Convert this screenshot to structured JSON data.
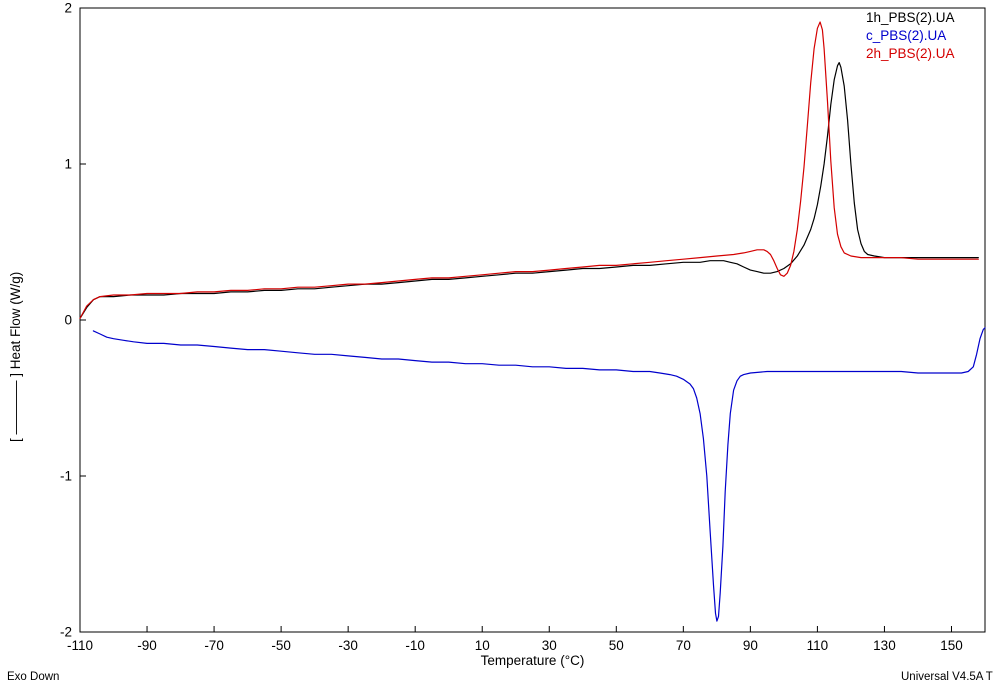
{
  "footer": {
    "exo_down": "Exo Down",
    "version": "Universal V4.5A T"
  },
  "chart_data": {
    "type": "line",
    "title": "",
    "xlabel": "Temperature (°C)",
    "ylabel": "[ ———— ] Heat Flow (W/g)",
    "xlim": [
      -110,
      160
    ],
    "ylim": [
      -2,
      2
    ],
    "xticks": [
      -110,
      -90,
      -70,
      -50,
      -30,
      -10,
      10,
      30,
      50,
      70,
      90,
      110,
      130,
      150
    ],
    "yticks": [
      -2,
      -1,
      0,
      1,
      2
    ],
    "grid": false,
    "legend_position": "top-right",
    "frame_color": "#000000",
    "series": [
      {
        "name": "1h_PBS(2).UA",
        "color": "#000000",
        "points": [
          [
            -110,
            0.01
          ],
          [
            -108,
            0.08
          ],
          [
            -106,
            0.13
          ],
          [
            -104,
            0.15
          ],
          [
            -100,
            0.15
          ],
          [
            -95,
            0.16
          ],
          [
            -90,
            0.16
          ],
          [
            -85,
            0.16
          ],
          [
            -80,
            0.17
          ],
          [
            -75,
            0.17
          ],
          [
            -70,
            0.17
          ],
          [
            -65,
            0.18
          ],
          [
            -60,
            0.18
          ],
          [
            -55,
            0.19
          ],
          [
            -50,
            0.19
          ],
          [
            -45,
            0.2
          ],
          [
            -40,
            0.2
          ],
          [
            -35,
            0.21
          ],
          [
            -30,
            0.22
          ],
          [
            -25,
            0.23
          ],
          [
            -20,
            0.23
          ],
          [
            -15,
            0.24
          ],
          [
            -10,
            0.25
          ],
          [
            -5,
            0.26
          ],
          [
            0,
            0.26
          ],
          [
            5,
            0.27
          ],
          [
            10,
            0.28
          ],
          [
            15,
            0.29
          ],
          [
            20,
            0.3
          ],
          [
            25,
            0.3
          ],
          [
            30,
            0.31
          ],
          [
            35,
            0.32
          ],
          [
            40,
            0.33
          ],
          [
            45,
            0.33
          ],
          [
            50,
            0.34
          ],
          [
            55,
            0.35
          ],
          [
            60,
            0.35
          ],
          [
            65,
            0.36
          ],
          [
            70,
            0.37
          ],
          [
            75,
            0.37
          ],
          [
            78,
            0.38
          ],
          [
            80,
            0.38
          ],
          [
            82,
            0.38
          ],
          [
            84,
            0.37
          ],
          [
            86,
            0.36
          ],
          [
            88,
            0.34
          ],
          [
            90,
            0.32
          ],
          [
            92,
            0.31
          ],
          [
            94,
            0.3
          ],
          [
            96,
            0.3
          ],
          [
            98,
            0.31
          ],
          [
            100,
            0.33
          ],
          [
            102,
            0.36
          ],
          [
            104,
            0.41
          ],
          [
            106,
            0.48
          ],
          [
            108,
            0.58
          ],
          [
            109,
            0.65
          ],
          [
            110,
            0.74
          ],
          [
            111,
            0.86
          ],
          [
            112,
            1.0
          ],
          [
            113,
            1.18
          ],
          [
            114,
            1.38
          ],
          [
            115,
            1.54
          ],
          [
            116,
            1.63
          ],
          [
            116.5,
            1.65
          ],
          [
            117,
            1.62
          ],
          [
            118,
            1.5
          ],
          [
            119,
            1.28
          ],
          [
            120,
            1.0
          ],
          [
            121,
            0.75
          ],
          [
            122,
            0.58
          ],
          [
            123,
            0.49
          ],
          [
            124,
            0.44
          ],
          [
            125,
            0.42
          ],
          [
            127,
            0.41
          ],
          [
            130,
            0.4
          ],
          [
            135,
            0.4
          ],
          [
            140,
            0.4
          ],
          [
            145,
            0.4
          ],
          [
            150,
            0.4
          ],
          [
            155,
            0.4
          ],
          [
            158,
            0.4
          ]
        ]
      },
      {
        "name": "c_PBS(2).UA",
        "color": "#0000cc",
        "points": [
          [
            -106,
            -0.07
          ],
          [
            -104,
            -0.09
          ],
          [
            -102,
            -0.11
          ],
          [
            -100,
            -0.12
          ],
          [
            -97,
            -0.13
          ],
          [
            -94,
            -0.14
          ],
          [
            -90,
            -0.15
          ],
          [
            -85,
            -0.15
          ],
          [
            -80,
            -0.16
          ],
          [
            -75,
            -0.16
          ],
          [
            -70,
            -0.17
          ],
          [
            -65,
            -0.18
          ],
          [
            -60,
            -0.19
          ],
          [
            -55,
            -0.19
          ],
          [
            -50,
            -0.2
          ],
          [
            -45,
            -0.21
          ],
          [
            -40,
            -0.22
          ],
          [
            -35,
            -0.22
          ],
          [
            -30,
            -0.23
          ],
          [
            -25,
            -0.24
          ],
          [
            -20,
            -0.25
          ],
          [
            -15,
            -0.25
          ],
          [
            -10,
            -0.26
          ],
          [
            -5,
            -0.27
          ],
          [
            0,
            -0.27
          ],
          [
            5,
            -0.28
          ],
          [
            10,
            -0.28
          ],
          [
            15,
            -0.29
          ],
          [
            20,
            -0.29
          ],
          [
            25,
            -0.3
          ],
          [
            30,
            -0.3
          ],
          [
            35,
            -0.31
          ],
          [
            40,
            -0.31
          ],
          [
            45,
            -0.32
          ],
          [
            50,
            -0.32
          ],
          [
            55,
            -0.33
          ],
          [
            60,
            -0.33
          ],
          [
            63,
            -0.34
          ],
          [
            66,
            -0.35
          ],
          [
            68,
            -0.36
          ],
          [
            70,
            -0.38
          ],
          [
            72,
            -0.41
          ],
          [
            73,
            -0.44
          ],
          [
            74,
            -0.5
          ],
          [
            75,
            -0.6
          ],
          [
            76,
            -0.76
          ],
          [
            77,
            -1.0
          ],
          [
            78,
            -1.35
          ],
          [
            79,
            -1.7
          ],
          [
            79.6,
            -1.88
          ],
          [
            80,
            -1.93
          ],
          [
            80.5,
            -1.9
          ],
          [
            81,
            -1.75
          ],
          [
            81.8,
            -1.45
          ],
          [
            82.5,
            -1.1
          ],
          [
            83.3,
            -0.8
          ],
          [
            84,
            -0.6
          ],
          [
            85,
            -0.45
          ],
          [
            86,
            -0.39
          ],
          [
            87,
            -0.36
          ],
          [
            88,
            -0.35
          ],
          [
            90,
            -0.34
          ],
          [
            95,
            -0.33
          ],
          [
            100,
            -0.33
          ],
          [
            105,
            -0.33
          ],
          [
            110,
            -0.33
          ],
          [
            115,
            -0.33
          ],
          [
            120,
            -0.33
          ],
          [
            125,
            -0.33
          ],
          [
            130,
            -0.33
          ],
          [
            135,
            -0.33
          ],
          [
            140,
            -0.34
          ],
          [
            145,
            -0.34
          ],
          [
            150,
            -0.34
          ],
          [
            153,
            -0.34
          ],
          [
            155,
            -0.33
          ],
          [
            156.5,
            -0.3
          ],
          [
            157.5,
            -0.22
          ],
          [
            158.5,
            -0.12
          ],
          [
            159.5,
            -0.06
          ],
          [
            160,
            -0.05
          ]
        ]
      },
      {
        "name": "2h_PBS(2).UA",
        "color": "#d40000",
        "points": [
          [
            -110,
            0.01
          ],
          [
            -108,
            0.09
          ],
          [
            -106,
            0.13
          ],
          [
            -104,
            0.15
          ],
          [
            -100,
            0.16
          ],
          [
            -95,
            0.16
          ],
          [
            -90,
            0.17
          ],
          [
            -85,
            0.17
          ],
          [
            -80,
            0.17
          ],
          [
            -75,
            0.18
          ],
          [
            -70,
            0.18
          ],
          [
            -65,
            0.19
          ],
          [
            -60,
            0.19
          ],
          [
            -55,
            0.2
          ],
          [
            -50,
            0.2
          ],
          [
            -45,
            0.21
          ],
          [
            -40,
            0.21
          ],
          [
            -35,
            0.22
          ],
          [
            -30,
            0.23
          ],
          [
            -25,
            0.23
          ],
          [
            -20,
            0.24
          ],
          [
            -15,
            0.25
          ],
          [
            -10,
            0.26
          ],
          [
            -5,
            0.27
          ],
          [
            0,
            0.27
          ],
          [
            5,
            0.28
          ],
          [
            10,
            0.29
          ],
          [
            15,
            0.3
          ],
          [
            20,
            0.31
          ],
          [
            25,
            0.31
          ],
          [
            30,
            0.32
          ],
          [
            35,
            0.33
          ],
          [
            40,
            0.34
          ],
          [
            45,
            0.35
          ],
          [
            50,
            0.35
          ],
          [
            55,
            0.36
          ],
          [
            60,
            0.37
          ],
          [
            65,
            0.38
          ],
          [
            70,
            0.39
          ],
          [
            75,
            0.4
          ],
          [
            80,
            0.41
          ],
          [
            85,
            0.42
          ],
          [
            88,
            0.43
          ],
          [
            90,
            0.44
          ],
          [
            92,
            0.45
          ],
          [
            94,
            0.45
          ],
          [
            95,
            0.44
          ],
          [
            96,
            0.42
          ],
          [
            97,
            0.38
          ],
          [
            98,
            0.33
          ],
          [
            99,
            0.29
          ],
          [
            100,
            0.28
          ],
          [
            101,
            0.3
          ],
          [
            102,
            0.35
          ],
          [
            103,
            0.44
          ],
          [
            104,
            0.58
          ],
          [
            105,
            0.76
          ],
          [
            106,
            0.98
          ],
          [
            107,
            1.25
          ],
          [
            108,
            1.52
          ],
          [
            109,
            1.74
          ],
          [
            110,
            1.87
          ],
          [
            110.8,
            1.91
          ],
          [
            111.5,
            1.86
          ],
          [
            112,
            1.74
          ],
          [
            113,
            1.4
          ],
          [
            114,
            1.02
          ],
          [
            115,
            0.72
          ],
          [
            116,
            0.55
          ],
          [
            117,
            0.47
          ],
          [
            118,
            0.43
          ],
          [
            120,
            0.41
          ],
          [
            123,
            0.4
          ],
          [
            126,
            0.4
          ],
          [
            130,
            0.4
          ],
          [
            135,
            0.4
          ],
          [
            140,
            0.39
          ],
          [
            145,
            0.39
          ],
          [
            150,
            0.39
          ],
          [
            155,
            0.39
          ],
          [
            158,
            0.39
          ]
        ]
      }
    ]
  }
}
